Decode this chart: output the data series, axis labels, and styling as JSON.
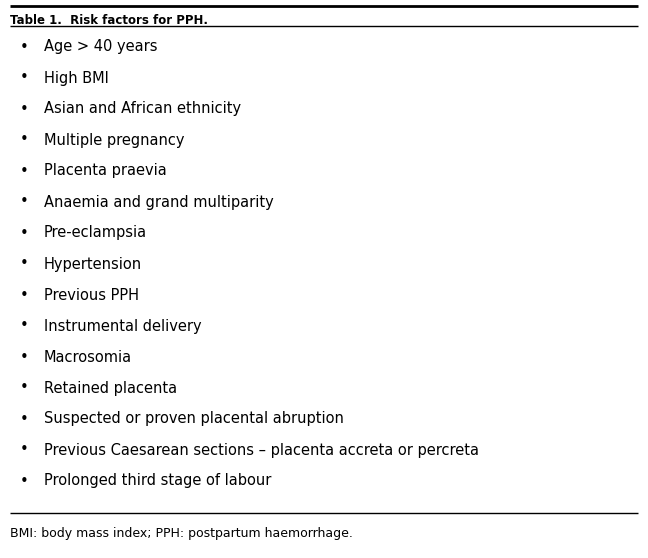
{
  "title": "Table 1.  Risk factors for PPH.",
  "items": [
    "Age > 40 years",
    "High BMI",
    "Asian and African ethnicity",
    "Multiple pregnancy",
    "Placenta praevia",
    "Anaemia and grand multiparity",
    "Pre-eclampsia",
    "Hypertension",
    "Previous PPH",
    "Instrumental delivery",
    "Macrosomia",
    "Retained placenta",
    "Suspected or proven placental abruption",
    "Previous Caesarean sections – placenta accreta or percreta",
    "Prolonged third stage of labour"
  ],
  "footnote": "BMI: body mass index; PPH: postpartum haemorrhage.",
  "background_color": "#ffffff",
  "text_color": "#000000",
  "title_color": "#000000",
  "footnote_color": "#000000",
  "title_fontsize": 8.5,
  "item_fontsize": 10.5,
  "footnote_fontsize": 9.0,
  "bullet_char": "•",
  "fig_width": 6.48,
  "fig_height": 5.58,
  "dpi": 100
}
